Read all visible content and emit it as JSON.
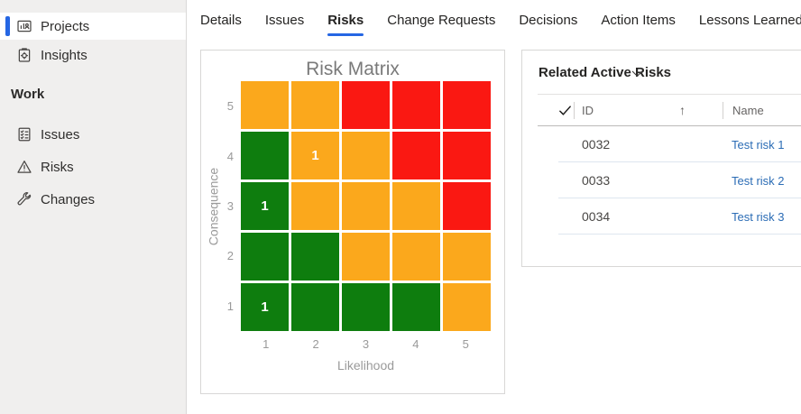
{
  "colors": {
    "accent": "#2566E3",
    "link": "#2B6CB5",
    "green": "#0E7D0E",
    "orange": "#FBA81C",
    "red": "#FA1812"
  },
  "sidebar": {
    "top_items": [
      {
        "label": "Projects",
        "icon": "projects-icon",
        "active": true
      },
      {
        "label": "Insights",
        "icon": "insights-icon",
        "active": false
      }
    ],
    "section_label": "Work",
    "work_items": [
      {
        "label": "Issues",
        "icon": "issues-icon"
      },
      {
        "label": "Risks",
        "icon": "risks-icon"
      },
      {
        "label": "Changes",
        "icon": "changes-icon"
      }
    ]
  },
  "tabs": [
    {
      "label": "Details",
      "active": false
    },
    {
      "label": "Issues",
      "active": false
    },
    {
      "label": "Risks",
      "active": true
    },
    {
      "label": "Change Requests",
      "active": false
    },
    {
      "label": "Decisions",
      "active": false
    },
    {
      "label": "Action Items",
      "active": false
    },
    {
      "label": "Lessons Learned",
      "active": false
    }
  ],
  "chart_data": {
    "type": "heatmap",
    "title": "Risk Matrix",
    "xlabel": "Likelihood",
    "ylabel": "Consequence",
    "x_ticks": [
      "1",
      "2",
      "3",
      "4",
      "5"
    ],
    "y_ticks": [
      "5",
      "4",
      "3",
      "2",
      "1"
    ],
    "palette": {
      "green": "#0E7D0E",
      "orange": "#FBA81C",
      "red": "#FA1812"
    },
    "cells": [
      [
        {
          "level": "orange"
        },
        {
          "level": "orange"
        },
        {
          "level": "red"
        },
        {
          "level": "red"
        },
        {
          "level": "red"
        }
      ],
      [
        {
          "level": "green"
        },
        {
          "level": "orange",
          "count": "1"
        },
        {
          "level": "orange"
        },
        {
          "level": "red"
        },
        {
          "level": "red"
        }
      ],
      [
        {
          "level": "green",
          "count": "1"
        },
        {
          "level": "orange"
        },
        {
          "level": "orange"
        },
        {
          "level": "orange"
        },
        {
          "level": "red"
        }
      ],
      [
        {
          "level": "green"
        },
        {
          "level": "green"
        },
        {
          "level": "orange"
        },
        {
          "level": "orange"
        },
        {
          "level": "orange"
        }
      ],
      [
        {
          "level": "green",
          "count": "1"
        },
        {
          "level": "green"
        },
        {
          "level": "green"
        },
        {
          "level": "green"
        },
        {
          "level": "orange"
        }
      ]
    ]
  },
  "related_risks": {
    "title": "Related Active Risks",
    "columns": {
      "id": "ID",
      "name": "Name",
      "sort_indicator": "↑"
    },
    "rows": [
      {
        "id": "0032",
        "name": "Test risk 1"
      },
      {
        "id": "0033",
        "name": "Test risk 2"
      },
      {
        "id": "0034",
        "name": "Test risk 3"
      }
    ]
  }
}
